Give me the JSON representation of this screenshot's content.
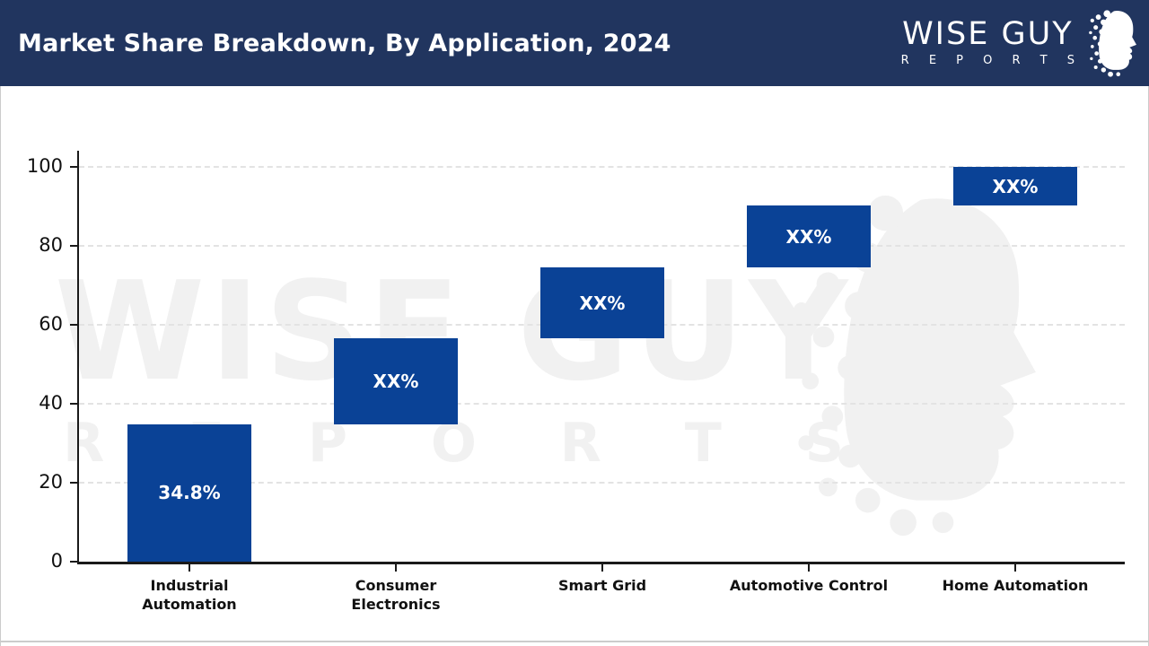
{
  "header": {
    "title": "Market Share Breakdown, By Application, 2024",
    "logo": {
      "name": "WISE GUY",
      "sub": "R E P O R T S"
    }
  },
  "watermark": {
    "line1": "WISE GUY",
    "line2": "R E P O R T S"
  },
  "chart_data": {
    "type": "bar",
    "subtype": "waterfall",
    "title": "Market Share Breakdown, By Application, 2024",
    "xlabel": "",
    "ylabel": "",
    "ylim": [
      0,
      100
    ],
    "yticks": [
      0,
      20,
      40,
      60,
      80,
      100
    ],
    "grid": "horizontal-dashed",
    "legend": "none",
    "categories": [
      "Industrial\nAutomation",
      "Consumer\nElectronics",
      "Smart Grid",
      "Automotive Control",
      "Home Automation"
    ],
    "segments": [
      {
        "category": "Industrial Automation",
        "start": 0,
        "end": 34.8,
        "label": "34.8%"
      },
      {
        "category": "Consumer Electronics",
        "start": 34.8,
        "end": 56.6,
        "label": "XX%"
      },
      {
        "category": "Smart Grid",
        "start": 56.6,
        "end": 74.5,
        "label": "XX%"
      },
      {
        "category": "Automotive Control",
        "start": 74.5,
        "end": 90.2,
        "label": "XX%"
      },
      {
        "category": "Home Automation",
        "start": 90.2,
        "end": 100,
        "label": "XX%"
      }
    ],
    "increments_est": [
      34.8,
      21.8,
      17.9,
      15.7,
      9.8
    ]
  },
  "colors": {
    "header_bg": "#21355f",
    "bar": "#0a4296",
    "bar_label": "#ffffff",
    "grid": "#e3e3e3",
    "axis": "#1a1a1a",
    "tick_label": "#111111",
    "watermark": "#f1f1f1",
    "border": "#cccccc"
  }
}
